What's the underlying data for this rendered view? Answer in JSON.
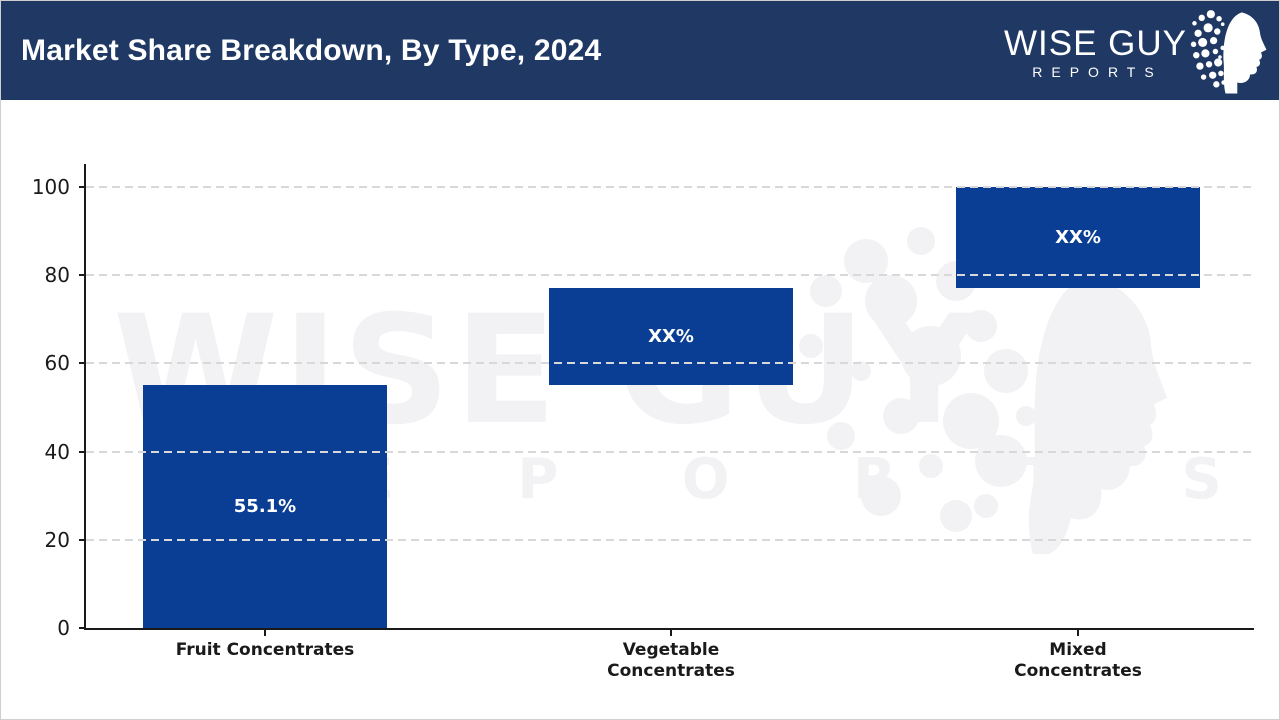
{
  "header": {
    "title": "Market Share Breakdown, By Type, 2024",
    "logo": {
      "name": "WISE GUY",
      "subtitle": "REPORTS"
    }
  },
  "watermark": {
    "line1": "WISE GUY",
    "line2": "R E P O R T S"
  },
  "chart_data": {
    "type": "bar",
    "subtype": "floating-waterfall",
    "title": "Market Share Breakdown, By Type, 2024",
    "categories": [
      "Fruit Concentrates",
      "Vegetable\nConcentrates",
      "Mixed Concentrates"
    ],
    "segments": [
      {
        "category": "Fruit Concentrates",
        "start": 0,
        "end": 55.1,
        "label": "55.1%"
      },
      {
        "category": "Vegetable Concentrates",
        "start": 55.1,
        "end": 77,
        "label": "XX%"
      },
      {
        "category": "Mixed Concentrates",
        "start": 77,
        "end": 100,
        "label": "XX%"
      }
    ],
    "ylim": [
      0,
      100
    ],
    "yticks": [
      0,
      20,
      40,
      60,
      80,
      100
    ],
    "xlabel": "",
    "ylabel": "",
    "grid": "horizontal-dashed",
    "legend": "none",
    "bar_color": "#0a3e94",
    "bar_label_color": "#ffffff",
    "grid_color": "#d8d8d8",
    "axis_color": "#1a1a1a",
    "header_color": "#1f3864",
    "watermark_color": "#f2f2f4"
  }
}
